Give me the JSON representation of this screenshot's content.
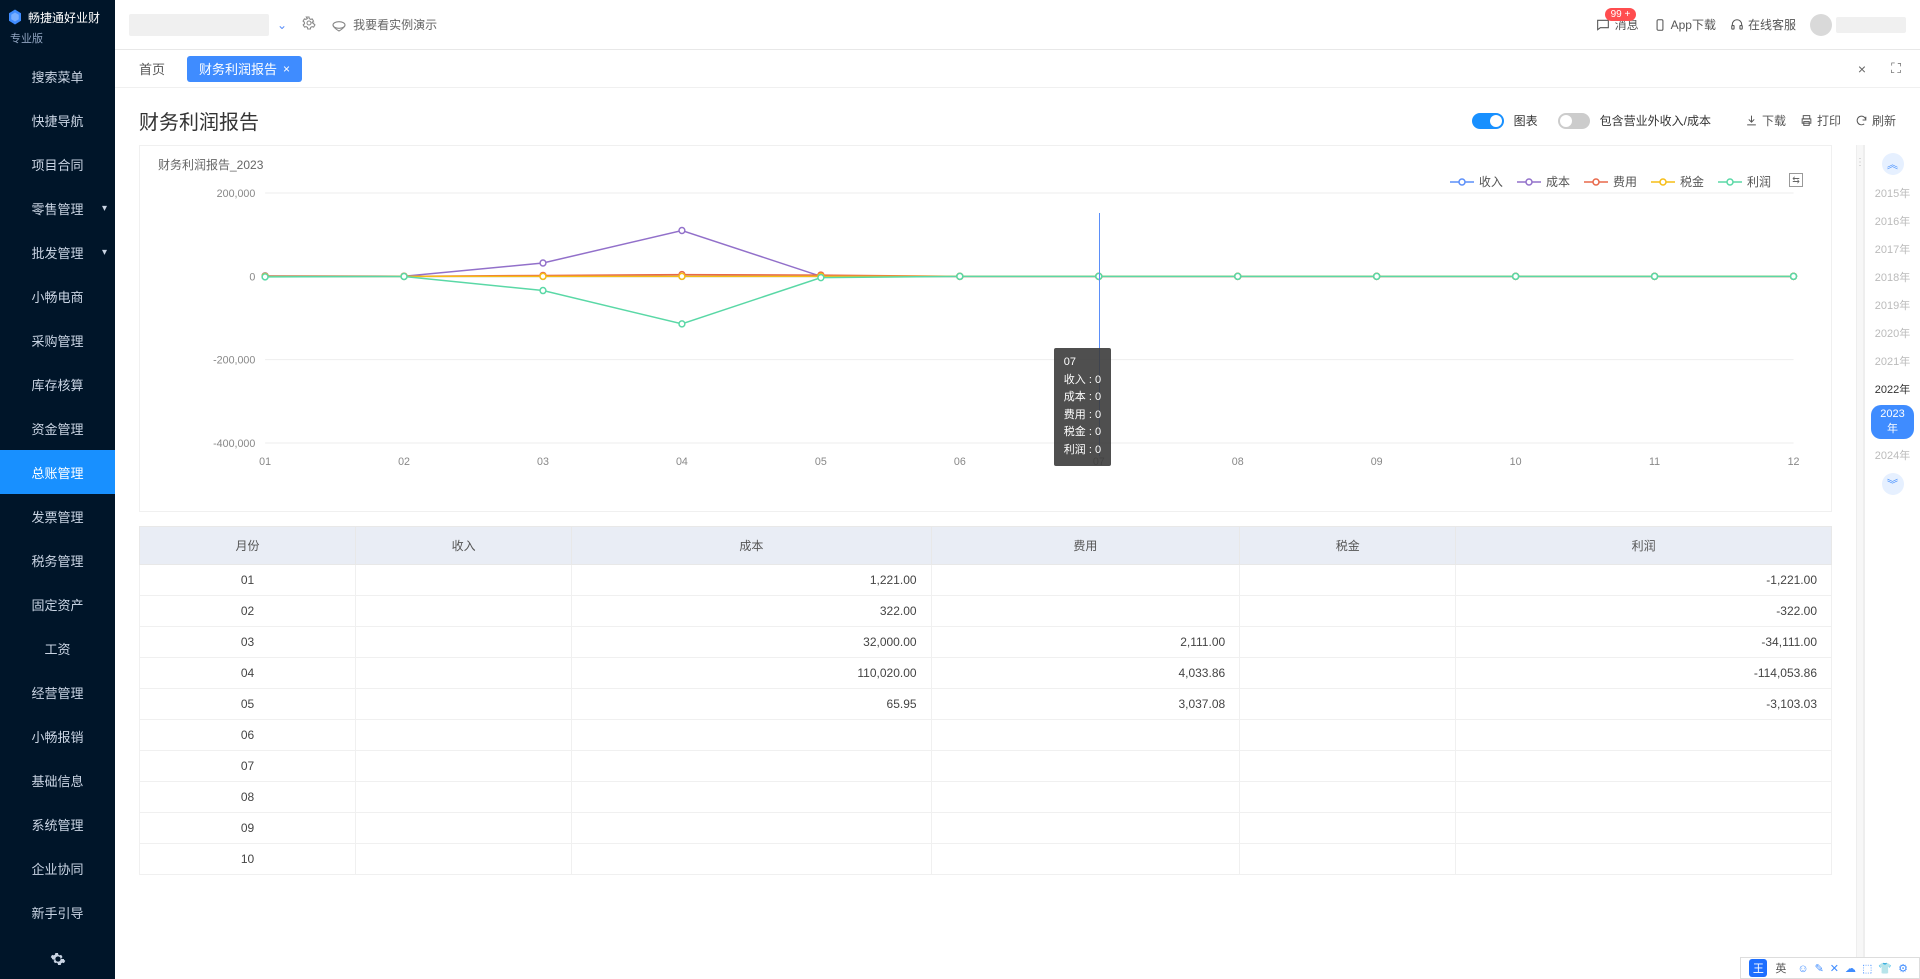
{
  "brand": {
    "name": "畅捷通好业财",
    "edition": "专业版"
  },
  "sidebar": {
    "items": [
      {
        "label": "搜索菜单"
      },
      {
        "label": "快捷导航"
      },
      {
        "label": "项目合同"
      },
      {
        "label": "零售管理",
        "expand": true
      },
      {
        "label": "批发管理",
        "expand": true
      },
      {
        "label": "小畅电商"
      },
      {
        "label": "采购管理"
      },
      {
        "label": "库存核算"
      },
      {
        "label": "资金管理"
      },
      {
        "label": "总账管理",
        "active": true
      },
      {
        "label": "发票管理"
      },
      {
        "label": "税务管理"
      },
      {
        "label": "固定资产"
      },
      {
        "label": "工资"
      },
      {
        "label": "经营管理"
      },
      {
        "label": "小畅报销"
      },
      {
        "label": "基础信息"
      },
      {
        "label": "系统管理"
      },
      {
        "label": "企业协同"
      },
      {
        "label": "新手引导"
      }
    ]
  },
  "topbar": {
    "demo": "我要看实例演示",
    "msg_label": "消息",
    "msg_badge": "99 +",
    "download": "App下载",
    "service": "在线客服"
  },
  "tabs": {
    "home": "首页",
    "active": "财务利润报告"
  },
  "page": {
    "title": "财务利润报告",
    "chart_label": "图表",
    "extra_label": "包含营业外收入/成本",
    "download": "下载",
    "print": "打印",
    "refresh": "刷新"
  },
  "chart": {
    "title": "财务利润报告_2023",
    "months": [
      "01",
      "02",
      "03",
      "04",
      "05",
      "06",
      "07",
      "08",
      "09",
      "10",
      "11",
      "12"
    ],
    "y_ticks": [
      200000,
      0,
      -200000,
      -400000
    ],
    "y_labels": [
      "200,000",
      "0",
      "-200,000",
      "-400,000"
    ],
    "ylim": [
      -400000,
      200000
    ],
    "series": [
      {
        "key": "income",
        "label": "收入",
        "color": "#5b8ff9",
        "values": [
          0,
          0,
          0,
          0,
          0,
          0,
          0,
          0,
          0,
          0,
          0,
          0
        ]
      },
      {
        "key": "cost",
        "label": "成本",
        "color": "#9270ca",
        "values": [
          1221,
          322,
          32000,
          110020,
          65.95,
          0,
          0,
          0,
          0,
          0,
          0,
          0
        ]
      },
      {
        "key": "expense",
        "label": "费用",
        "color": "#e8684a",
        "values": [
          0,
          0,
          2111,
          4033.86,
          3037.08,
          0,
          0,
          0,
          0,
          0,
          0,
          0
        ]
      },
      {
        "key": "tax",
        "label": "税金",
        "color": "#f6bd16",
        "values": [
          0,
          0,
          0,
          0,
          0,
          0,
          0,
          0,
          0,
          0,
          0,
          0
        ]
      },
      {
        "key": "profit",
        "label": "利润",
        "color": "#5ad8a6",
        "values": [
          -1221,
          -322,
          -34111,
          -114053.86,
          -3103.03,
          0,
          0,
          0,
          0,
          0,
          0,
          0
        ]
      }
    ],
    "tooltip": {
      "month": "07",
      "rows": [
        [
          "收入",
          "0"
        ],
        [
          "成本",
          "0"
        ],
        [
          "费用",
          "0"
        ],
        [
          "税金",
          "0"
        ],
        [
          "利润",
          "0"
        ]
      ]
    },
    "background": "#ffffff",
    "grid_color": "#eeeeee"
  },
  "table": {
    "columns": [
      "月份",
      "收入",
      "成本",
      "费用",
      "税金",
      "利润"
    ],
    "rows": [
      [
        "01",
        "",
        "1,221.00",
        "",
        "",
        "-1,221.00"
      ],
      [
        "02",
        "",
        "322.00",
        "",
        "",
        "-322.00"
      ],
      [
        "03",
        "",
        "32,000.00",
        "2,111.00",
        "",
        "-34,111.00"
      ],
      [
        "04",
        "",
        "110,020.00",
        "4,033.86",
        "",
        "-114,053.86"
      ],
      [
        "05",
        "",
        "65.95",
        "3,037.08",
        "",
        "-3,103.03"
      ],
      [
        "06",
        "",
        "",
        "",
        "",
        ""
      ],
      [
        "07",
        "",
        "",
        "",
        "",
        ""
      ],
      [
        "08",
        "",
        "",
        "",
        "",
        ""
      ],
      [
        "09",
        "",
        "",
        "",
        "",
        ""
      ],
      [
        "10",
        "",
        "",
        "",
        "",
        ""
      ]
    ]
  },
  "years": {
    "list": [
      "2015年",
      "2016年",
      "2017年",
      "2018年",
      "2019年",
      "2020年",
      "2021年",
      "2022年",
      "2023年",
      "2024年"
    ],
    "strong": "2022年",
    "selected": "2023年"
  },
  "ime": {
    "mode": "英",
    "icons": [
      "☺",
      "✎",
      "✕",
      "☁",
      "⬚",
      "👕",
      "⚙"
    ]
  }
}
